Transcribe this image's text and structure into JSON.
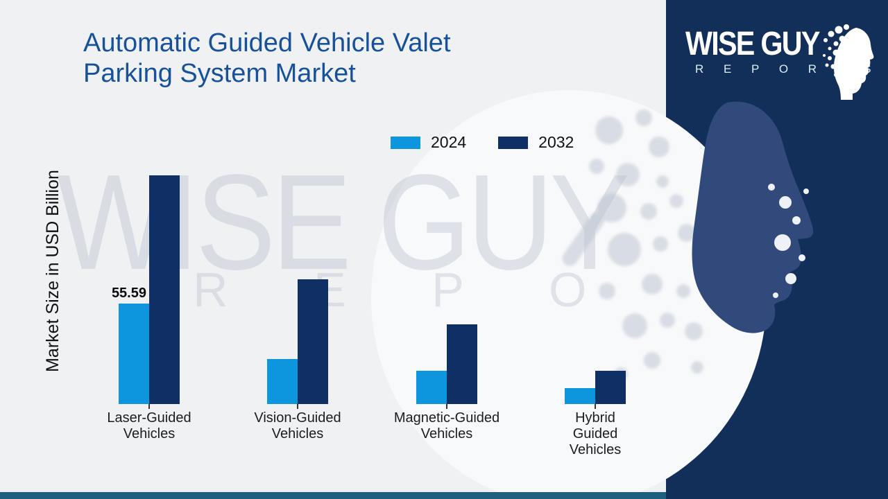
{
  "title": {
    "line1": "Automatic Guided Vehicle Valet",
    "line2": "Parking System Market"
  },
  "y_axis_label": "Market Size in USD Billion",
  "watermark": {
    "line1": "WISE GUY",
    "line2": "R E P O R T S"
  },
  "logo": {
    "name": "WISE GUY",
    "sub": "R E P O R T S"
  },
  "colors": {
    "background": "#f0f1f3",
    "title_blue": "#17519a",
    "bar_2024": "#0d95dd",
    "bar_2032": "#103065",
    "panel_navy": "#122f5a",
    "footer_teal": "#1e5f7e",
    "circle_light": "#f8f9fb",
    "face_blue": "#32497c"
  },
  "chart_data": {
    "type": "bar",
    "title": "Automatic Guided Vehicle Valet Parking System Market",
    "xlabel": "",
    "ylabel": "Market Size in USD Billion",
    "unit": "USD Billion",
    "grid": false,
    "legend_position": "top",
    "ylim": [
      0,
      135
    ],
    "categories": [
      "Laser-Guided Vehicles",
      "Vision-Guided Vehicles",
      "Magnetic-Guided Vehicles",
      "Hybrid Guided Vehicles"
    ],
    "series": [
      {
        "name": "2024",
        "color": "#0d95dd",
        "values": [
          55.59,
          24.9,
          18.4,
          8.8
        ]
      },
      {
        "name": "2032",
        "color": "#103065",
        "values": [
          126.5,
          69.0,
          44.1,
          18.4
        ]
      }
    ],
    "data_labels": [
      {
        "series_index": 0,
        "category_index": 0,
        "text": "55.59"
      }
    ]
  }
}
